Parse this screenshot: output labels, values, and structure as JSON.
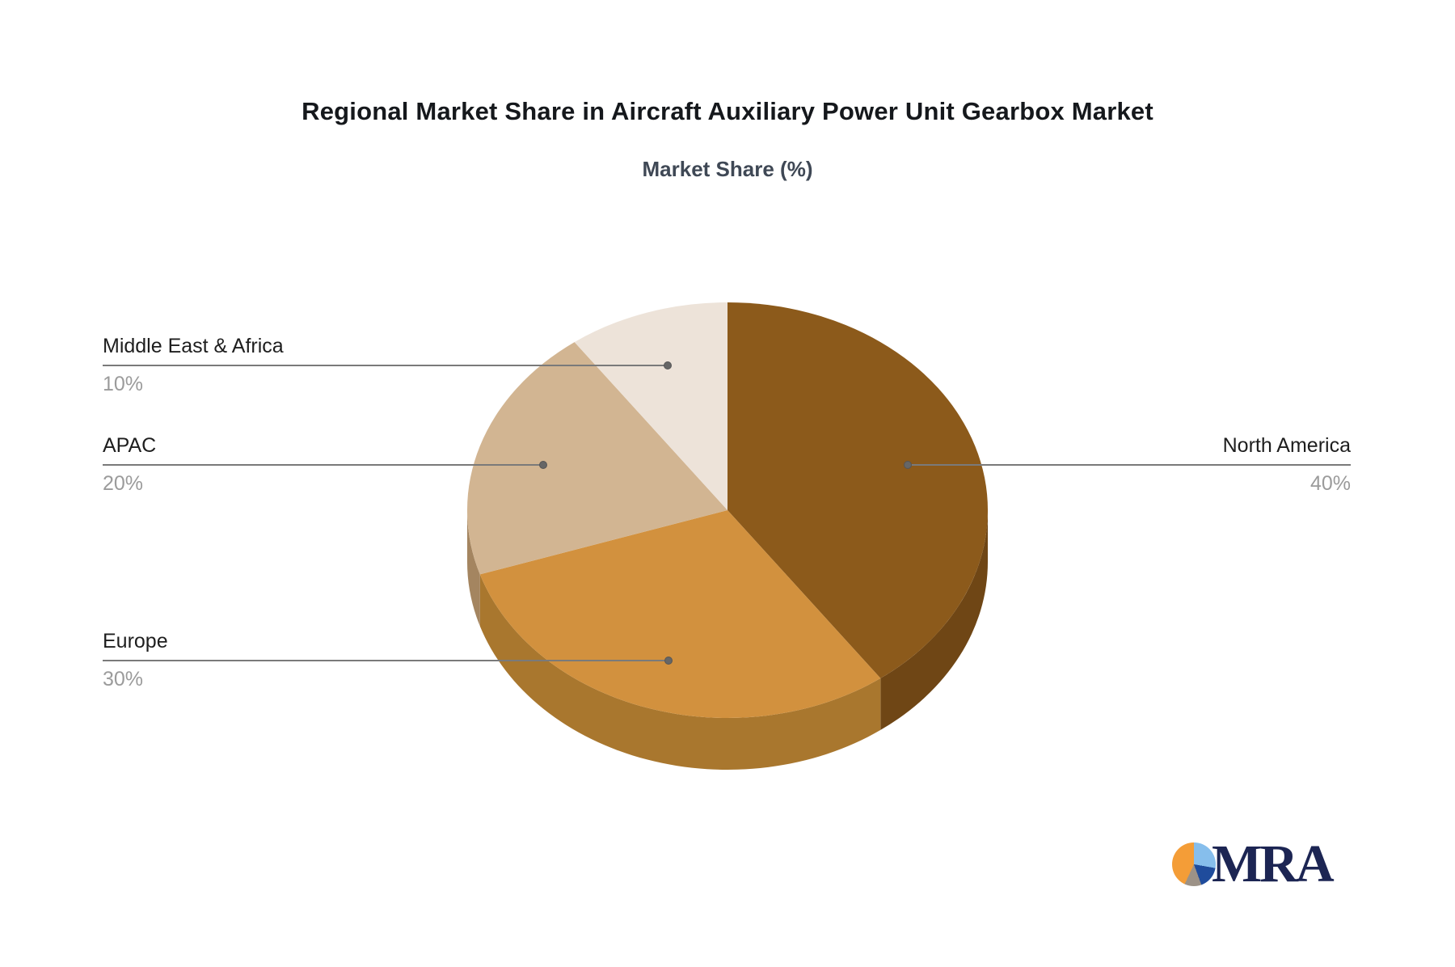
{
  "page": {
    "background": "#ffffff"
  },
  "header": {
    "title": "Regional Market Share in Aircraft Auxiliary Power Unit Gearbox Market",
    "subtitle": "Market Share (%)",
    "title_color": "#15181c",
    "subtitle_color": "#3f4855"
  },
  "chart_data": {
    "type": "pie",
    "style": "3d",
    "title": "Regional Market Share in Aircraft Auxiliary Power Unit Gearbox Market",
    "subtitle": "Market Share (%)",
    "unit": "%",
    "start_angle_deg": 0,
    "direction": "clockwise",
    "legend_position": "callout-labels",
    "slices": [
      {
        "label": "North America",
        "value": 40,
        "percent_label": "40%",
        "color": "#8C5A1B",
        "side_color": "#6F4615"
      },
      {
        "label": "Europe",
        "value": 30,
        "percent_label": "30%",
        "color": "#D2913E",
        "side_color": "#A9772E"
      },
      {
        "label": "APAC",
        "value": 20,
        "percent_label": "20%",
        "color": "#D2B592",
        "side_color": "#A48560"
      },
      {
        "label": "Middle East & Africa",
        "value": 10,
        "percent_label": "10%",
        "color": "#EDE3D9",
        "side_color": "#C9B394"
      }
    ]
  },
  "callout_style": {
    "label_color": "#1e1e1e",
    "percent_color": "#9b9b9b",
    "line_color": "#7a7a7a",
    "dot_color": "#666666"
  },
  "logo": {
    "text": "MRA",
    "text_color": "#1c2553",
    "mark_colors": {
      "light_blue": "#86BEEC",
      "dark_blue": "#1F4C9C",
      "gray": "#9C9287",
      "orange": "#F49D37"
    }
  }
}
